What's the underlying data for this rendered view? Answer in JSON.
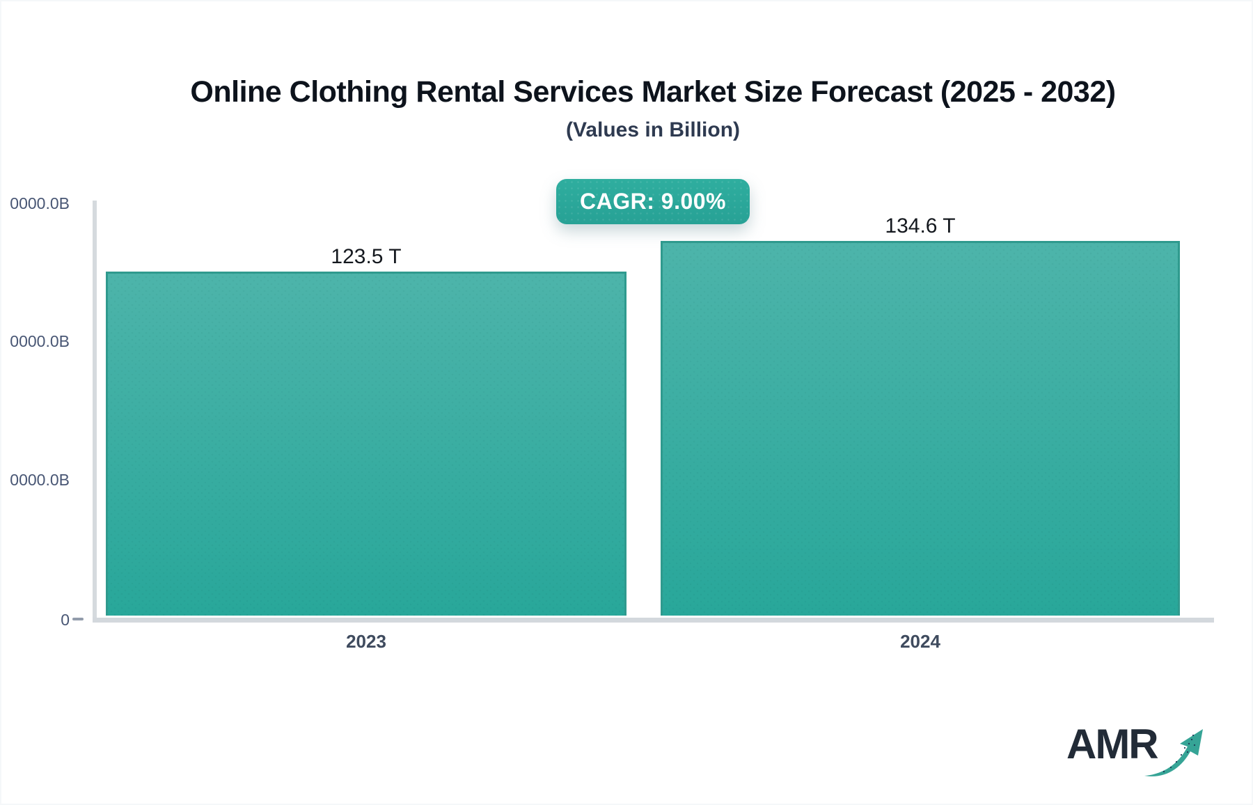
{
  "header": {
    "title": "Online Clothing Rental Services Market Size Forecast (2025 - 2032)",
    "subtitle": "(Values in Billion)"
  },
  "badge": {
    "label": "CAGR: 9.00%",
    "bg_color": "#2aa89a",
    "text_color": "#ffffff"
  },
  "chart_data": {
    "type": "bar",
    "title": "Online Clothing Rental Services Market Size Forecast (2025 - 2032)",
    "subtitle": "(Values in Billion)",
    "cagr_percent": 9.0,
    "categories": [
      "2023",
      "2024"
    ],
    "values_billion": [
      123500,
      134600
    ],
    "value_labels": [
      "123.5 T",
      "134.6 T"
    ],
    "unit": "Billion USD",
    "ylim_billion": [
      0,
      150000
    ],
    "y_tick_labels": [
      "0000.0B",
      "0000.0B",
      "0000.0B",
      "0"
    ],
    "grid": "off",
    "legend": "none",
    "bar_color_top": "#4db4aa",
    "bar_color_bottom": "#28a79a",
    "bar_border_color": "#2f9a8e",
    "axis_color": "#d5dade"
  },
  "logo": {
    "text": "AMR",
    "color": "#222b37",
    "arrow_color": "#36a496"
  }
}
